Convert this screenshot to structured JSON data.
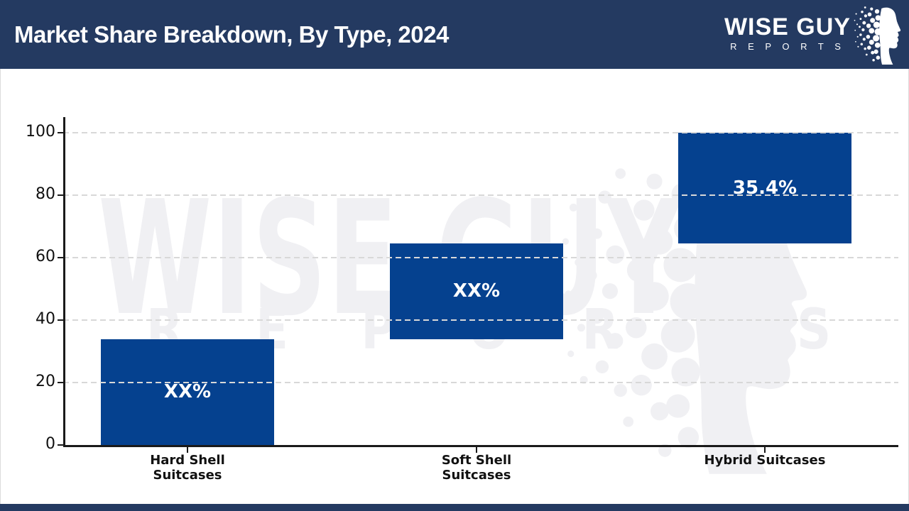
{
  "header": {
    "title": "Market Share Breakdown, By Type, 2024",
    "logo_line1": "WISE GUY",
    "logo_line2": "R E P O R T S"
  },
  "watermark": {
    "line1": "WISE GUY",
    "line2": "R E P O R T S"
  },
  "footer": {},
  "chart_data": {
    "type": "bar",
    "subtype": "waterfall",
    "title": "Market Share Breakdown, By Type, 2024",
    "categories": [
      [
        "Hard Shell",
        "Suitcases"
      ],
      [
        "Soft Shell",
        "Suitcases"
      ],
      [
        "Hybrid Suitcases"
      ]
    ],
    "series": [
      {
        "name": "Hard Shell Suitcases",
        "start": 0,
        "end": 33.9,
        "value": 33.9,
        "label": "XX%"
      },
      {
        "name": "Soft Shell Suitcases",
        "start": 33.9,
        "end": 64.6,
        "value": 30.7,
        "label": "XX%"
      },
      {
        "name": "Hybrid Suitcases",
        "start": 64.6,
        "end": 100,
        "value": 35.4,
        "label": "35.4%"
      }
    ],
    "xlabel": "",
    "ylabel": "",
    "yticks": [
      0,
      20,
      40,
      60,
      80,
      100
    ],
    "ylim": [
      0,
      105
    ],
    "grid": "horizontal-dashed",
    "grid_over_bars": true,
    "legend_position": "none",
    "bar_color": "#05418F"
  },
  "colors": {
    "header_bg": "#243A61",
    "footer_bg": "#243A61",
    "bar": "#05418F",
    "grid": "#d8d8d8",
    "axis": "#1a1a1a",
    "watermark": "#f0f0f3"
  }
}
